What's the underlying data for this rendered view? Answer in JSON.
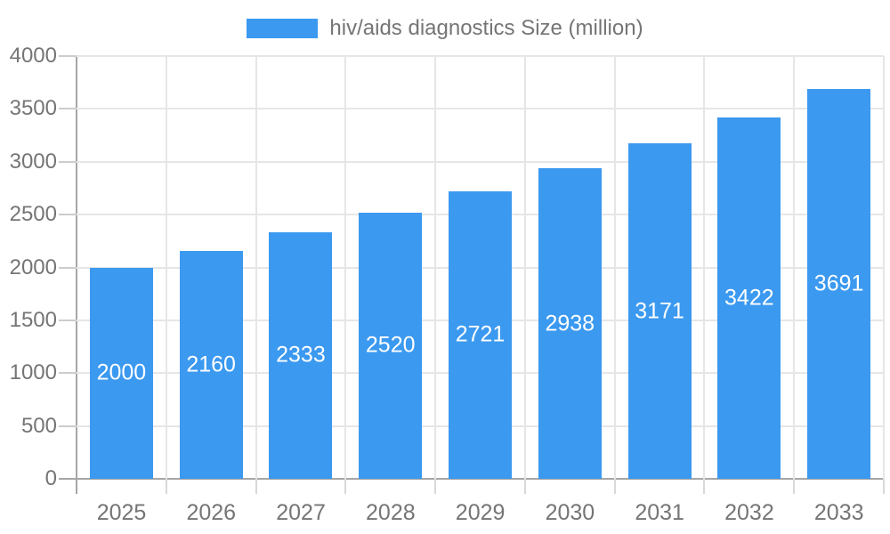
{
  "chart_data": {
    "type": "bar",
    "title": "",
    "legend_label": "hiv/aids diagnostics Size (million)",
    "legend_position": "top",
    "categories": [
      "2025",
      "2026",
      "2027",
      "2028",
      "2029",
      "2030",
      "2031",
      "2032",
      "2033"
    ],
    "values": [
      2000,
      2160,
      2333,
      2520,
      2721,
      2938,
      3171,
      3422,
      3691
    ],
    "xlabel": "",
    "ylabel": "",
    "ylim": [
      0,
      4000
    ],
    "ytick_interval": 500,
    "ytick_labels": [
      "0",
      "500",
      "1000",
      "1500",
      "2000",
      "2500",
      "3000",
      "3500",
      "4000"
    ],
    "grid": true,
    "value_labels_inside_bars": true,
    "colors": {
      "bar": "#3b99f0",
      "value_label": "#ffffff",
      "axis_text": "#757575",
      "gridline": "#e6e6e6",
      "axis_line": "#a6a6a6",
      "background": "#ffffff"
    }
  }
}
